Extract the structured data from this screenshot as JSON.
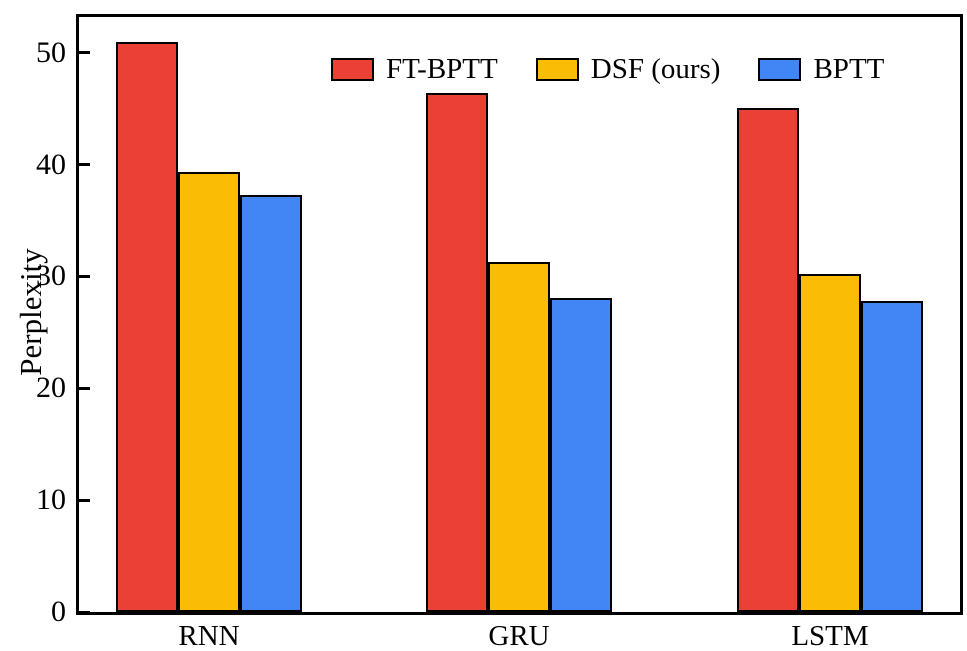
{
  "figure": {
    "background": "#ffffff",
    "axis_color": "#000000"
  },
  "chart_data": {
    "type": "bar",
    "title": "",
    "xlabel": "",
    "ylabel": "Perplexity",
    "categories": [
      "RNN",
      "GRU",
      "LSTM"
    ],
    "series": [
      {
        "name": "FT-BPTT",
        "color": "#EA4035",
        "values": [
          51.0,
          46.4,
          45.1
        ]
      },
      {
        "name": "DSF (ours)",
        "color": "#FBBC05",
        "values": [
          39.3,
          31.3,
          30.2
        ]
      },
      {
        "name": "BPTT",
        "color": "#4285F4",
        "values": [
          37.3,
          28.1,
          27.8
        ]
      }
    ],
    "ylim": [
      0,
      53.2
    ],
    "yticks": [
      0,
      10,
      20,
      30,
      40,
      50
    ],
    "grid": false,
    "legend_position": "top-inside",
    "bar_edge_color": "#000000",
    "tick_direction": "in"
  }
}
